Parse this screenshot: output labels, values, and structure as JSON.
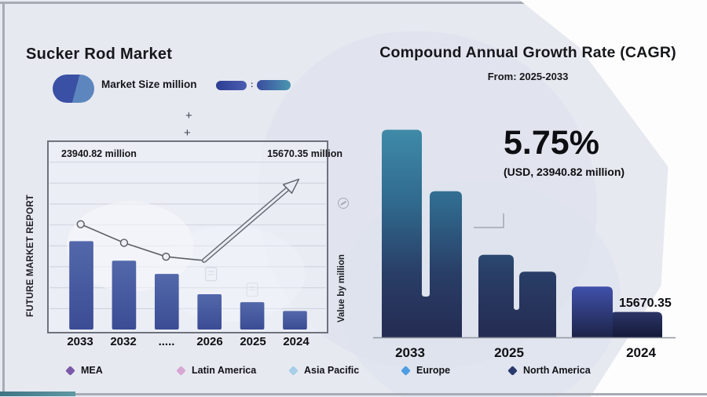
{
  "header_left": {
    "title": "Sucker Rod Market",
    "legend_label": "Market Size million",
    "separator": ":",
    "plus": "+"
  },
  "header_right": {
    "title": "Compound Annual Growth Rate (CAGR)",
    "subtitle": "From: 2025-2033"
  },
  "cagr_panel": {
    "value": "5.75%",
    "note": "(USD, 23940.82 million)"
  },
  "left_chart": {
    "top_left_label": "23940.82 million",
    "top_right_label": "15670.35 million",
    "axis_label_left": "FUTURE MARKET REPORT",
    "axis_label_right": "Value by million"
  },
  "right_chart": {
    "value_label": "15670.35"
  },
  "legend": {
    "items": [
      {
        "label": "MEA",
        "color": "#7a5aa8"
      },
      {
        "label": "Latin America",
        "color": "#d8a8d4"
      },
      {
        "label": "Asia Pacific",
        "color": "#a8cee9"
      },
      {
        "label": "Europe",
        "color": "#4d9de2"
      },
      {
        "label": "North America",
        "color": "#2a3a6e"
      }
    ]
  },
  "chart_data": [
    {
      "type": "bar",
      "title": "Sucker Rod Market — Market Size million",
      "value_axis_label": "Value by million",
      "side_label": "FUTURE MARKET REPORT",
      "categories": [
        "2033",
        "2032",
        ".....",
        "2026",
        "2025",
        "2024"
      ],
      "known_values_million": {
        "2033": 23940.82,
        "2024": 15670.35
      },
      "relative_bar_heights": [
        1.0,
        0.78,
        0.63,
        0.4,
        0.31,
        0.21
      ],
      "trend_points_frac": [
        [
          0.115,
          0.433
        ],
        [
          0.271,
          0.531
        ],
        [
          0.422,
          0.604
        ],
        [
          0.559,
          0.624
        ]
      ],
      "arrow_tip_frac": [
        0.899,
        0.196
      ],
      "trend": "declining markers with upward breakout arrow"
    },
    {
      "type": "bar",
      "title": "Compound Annual Growth Rate (CAGR)",
      "subtitle": "From: 2025-2033",
      "cagr_percent": 5.75,
      "base_value_usd_million": 23940.82,
      "labeled_value": {
        "category": "2024",
        "value": "15670.35"
      },
      "categories": [
        "2033",
        "2025",
        "2024"
      ],
      "series": [
        {
          "name": "primary",
          "relative_heights": [
            0.98,
            0.39,
            0.24
          ]
        },
        {
          "name": "secondary",
          "relative_heights": [
            0.69,
            0.31,
            0.12
          ]
        }
      ]
    }
  ]
}
